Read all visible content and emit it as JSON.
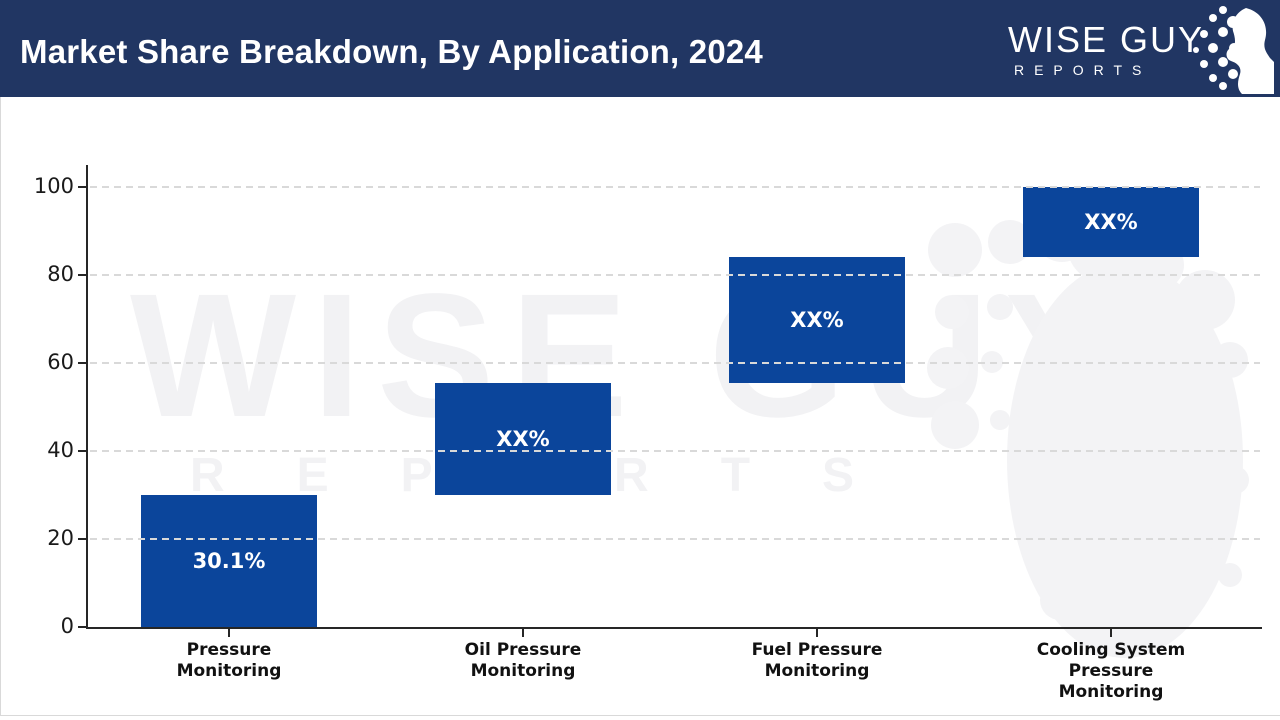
{
  "header": {
    "title": "Market Share Breakdown, By Application, 2024",
    "logo": {
      "primary": "WISE GUY",
      "secondary": "REPORTS"
    }
  },
  "watermark": {
    "primary": "WISE GUY",
    "secondary": "REPORTS"
  },
  "chart_data": {
    "type": "bar",
    "subtype": "waterfall-stacked-share",
    "title": "Market Share Breakdown, By Application, 2024",
    "categories": [
      "Pressure\nMonitoring",
      "Oil Pressure\nMonitoring",
      "Fuel Pressure\nMonitoring",
      "Cooling System\nPressure\nMonitoring"
    ],
    "segments": [
      {
        "category": "Pressure Monitoring",
        "start": 0,
        "end": 30.1,
        "label": "30.1%"
      },
      {
        "category": "Oil Pressure Monitoring",
        "start": 30.1,
        "end": 55.5,
        "label": "XX%"
      },
      {
        "category": "Fuel Pressure Monitoring",
        "start": 55.5,
        "end": 84,
        "label": "XX%"
      },
      {
        "category": "Cooling System Pressure Monitoring",
        "start": 84,
        "end": 100,
        "label": "XX%"
      }
    ],
    "yticks": [
      0,
      20,
      40,
      60,
      80,
      100
    ],
    "ylim": [
      0,
      105
    ],
    "xlabel": "",
    "ylabel": "",
    "grid": "horizontal-dashed",
    "legend": "none",
    "bar_color": "#0B459B",
    "bar_label_color": "#FFFFFF",
    "header_color": "#213663",
    "axis_color": "#262626"
  }
}
